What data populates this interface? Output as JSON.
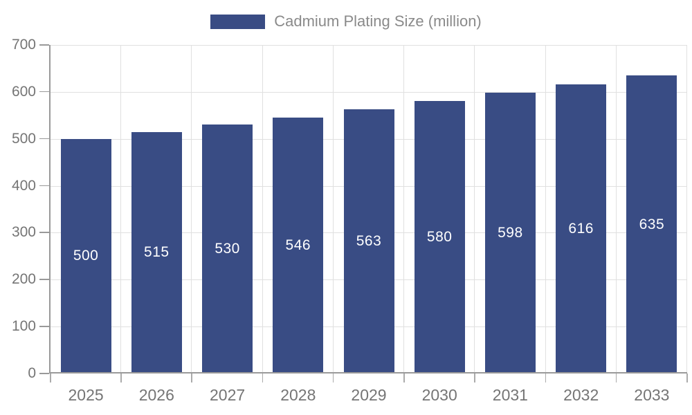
{
  "legend": {
    "label": "Cadmium Plating Size (million)",
    "swatch_color": "#394C84"
  },
  "chart_data": {
    "type": "bar",
    "title": "Cadmium Plating Size (million)",
    "series_name": "Cadmium Plating Size (million)",
    "categories": [
      "2025",
      "2026",
      "2027",
      "2028",
      "2029",
      "2030",
      "2031",
      "2032",
      "2033"
    ],
    "values": [
      500,
      515,
      530,
      546,
      563,
      580,
      598,
      616,
      635
    ],
    "value_labels": [
      "500",
      "515",
      "530",
      "546",
      "563",
      "580",
      "598",
      "616",
      "635"
    ],
    "xlabel": "",
    "ylabel": "",
    "ylim": [
      0,
      700
    ],
    "y_ticks": [
      0,
      100,
      200,
      300,
      400,
      500,
      600,
      700
    ],
    "grid": true,
    "legend_position": "top",
    "bar_color": "#394C84",
    "value_label_color": "#FFFFFF"
  },
  "colors": {
    "background": "#FFFFFF",
    "bar": "#394C84",
    "axis_line": "#999999",
    "x_tick": "#ABABAB",
    "gridline": "#E0E0E0",
    "tick_label": "#757575",
    "legend_text": "#8A8A8A",
    "value_label": "#FFFFFF"
  }
}
